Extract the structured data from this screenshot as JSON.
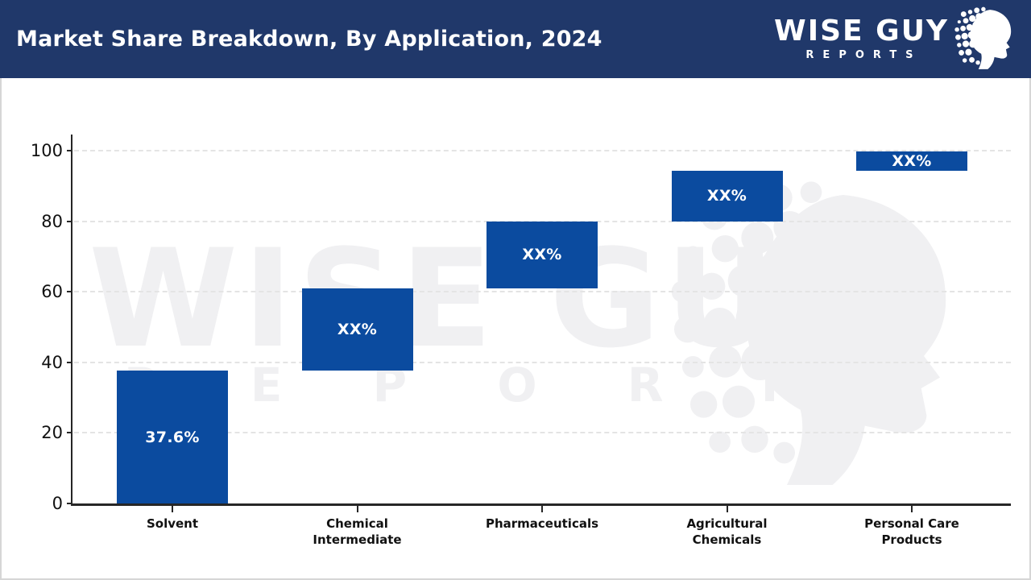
{
  "header": {
    "title": "Market Share Breakdown, By Application, 2024",
    "logo": {
      "line1": "WISE GUY",
      "line2": "REPORTS"
    },
    "bg_color": "#20386a",
    "text_color": "#ffffff"
  },
  "watermark": {
    "line1": "WISE GUY",
    "line2": "R E P O R T S"
  },
  "chart_data": {
    "type": "bar",
    "variant": "waterfall",
    "title": "Market Share Breakdown, By Application, 2024",
    "categories": [
      "Solvent",
      "Chemical Intermediate",
      "Pharmaceuticals",
      "Agricultural Chemicals",
      "Personal Care Products"
    ],
    "segments": [
      {
        "category": "Solvent",
        "lines": [
          "Solvent"
        ],
        "start": 0,
        "end": 37.6,
        "label": "37.6%"
      },
      {
        "category": "Chemical Intermediate",
        "lines": [
          "Chemical",
          "Intermediate"
        ],
        "start": 37.6,
        "end": 61.0,
        "label": "XX%"
      },
      {
        "category": "Pharmaceuticals",
        "lines": [
          "Pharmaceuticals"
        ],
        "start": 61.0,
        "end": 80.0,
        "label": "XX%"
      },
      {
        "category": "Agricultural Chemicals",
        "lines": [
          "Agricultural",
          "Chemicals"
        ],
        "start": 80.0,
        "end": 94.2,
        "label": "XX%"
      },
      {
        "category": "Personal Care Products",
        "lines": [
          "Personal Care",
          "Products"
        ],
        "start": 94.2,
        "end": 99.8,
        "label": "XX%"
      }
    ],
    "y_ticks": [
      0,
      20,
      40,
      60,
      80,
      100
    ],
    "ylim": [
      0,
      105
    ],
    "xlabel": "",
    "ylabel": "",
    "grid": "horizontal-dashed",
    "legend": "none",
    "bar_color": "#0b4b9f",
    "axis_color": "#262626",
    "grid_color": "#e4e4e4",
    "value_label_color": "#ffffff"
  }
}
